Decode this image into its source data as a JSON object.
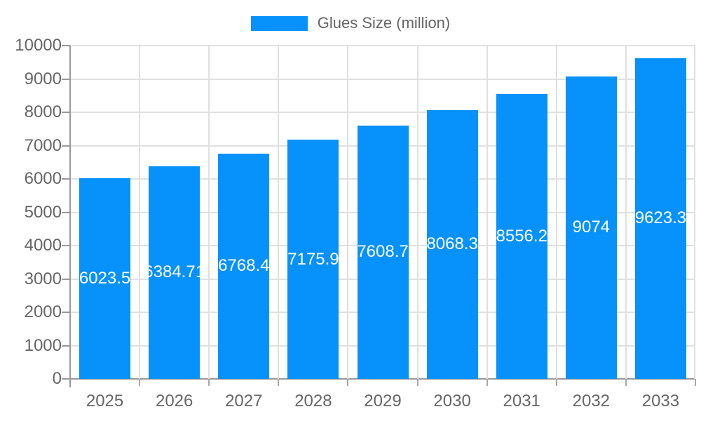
{
  "chart_data": {
    "type": "bar",
    "title": "",
    "legend": "Glues Size (million)",
    "legend_position": "top",
    "categories": [
      "2025",
      "2026",
      "2027",
      "2028",
      "2029",
      "2030",
      "2031",
      "2032",
      "2033"
    ],
    "values": [
      6023.5,
      6384.71,
      6768.4,
      7175.9,
      7608.7,
      8068.3,
      8556.2,
      9074,
      9623.3
    ],
    "bar_labels": [
      "6023.5",
      "6384.71",
      "6768.4",
      "7175.9",
      "7608.7",
      "8068.3",
      "8556.2",
      "9074",
      "9623.3"
    ],
    "xlabel": "",
    "ylabel": "",
    "ylim": [
      0,
      10000
    ],
    "yticks": [
      0,
      1000,
      2000,
      3000,
      4000,
      5000,
      6000,
      7000,
      8000,
      9000,
      10000
    ],
    "grid": true,
    "colors": {
      "bar": "#0791fb",
      "grid": "#e0e0e0",
      "axis": "#999999",
      "tick": "#a8a8a8",
      "axis_text": "#666666",
      "bar_label": "#ffffff"
    }
  }
}
